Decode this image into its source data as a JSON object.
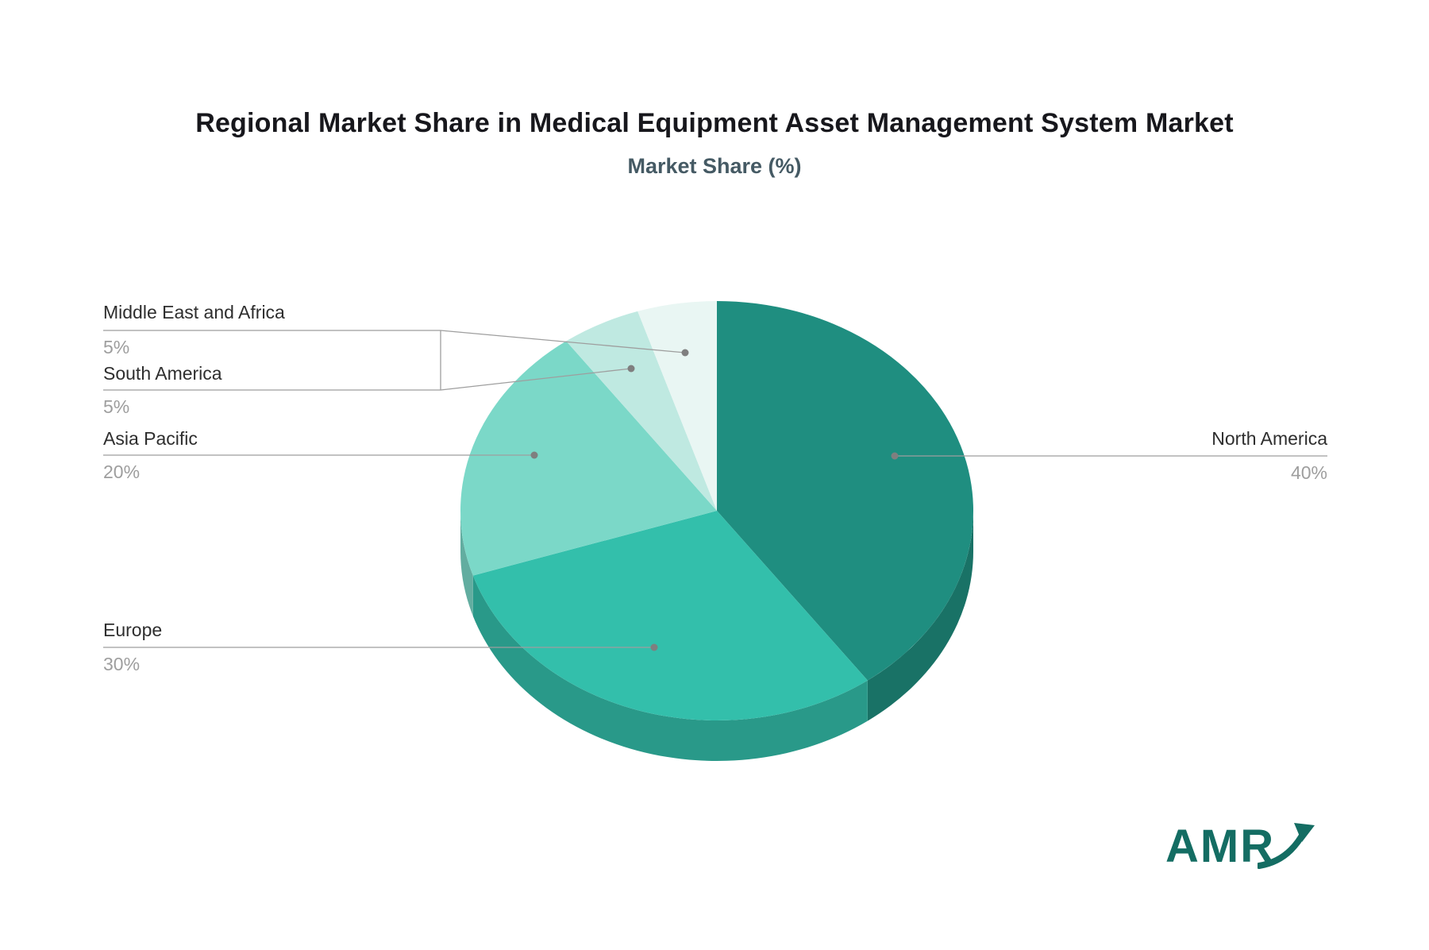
{
  "title": "Regional Market Share in Medical Equipment Asset Management System Market",
  "subtitle": "Market Share (%)",
  "logo": {
    "text": "AMR"
  },
  "colors": {
    "background": "#ffffff",
    "title": "#17171c",
    "subtitle": "#455a64",
    "label": "#2e2e2e",
    "value": "#9e9e9e",
    "leader_line": "#9e9e9e",
    "leader_dot": "#7f7f7f",
    "logo": "#146d63"
  },
  "chart_data": {
    "type": "pie",
    "style": "3d",
    "title": "Regional Market Share in Medical Equipment Asset Management System Market",
    "subtitle": "Market Share (%)",
    "unit": "%",
    "categories": [
      "North America",
      "Europe",
      "Asia Pacific",
      "South America",
      "Middle East and Africa"
    ],
    "values": [
      40,
      30,
      20,
      5,
      5
    ],
    "labels": [
      "40%",
      "30%",
      "20%",
      "5%",
      "5%"
    ],
    "slice_colors": [
      "#1f8e80",
      "#33bfab",
      "#7bd8c8",
      "#bfe9e1",
      "#e9f6f3"
    ],
    "start_angle_deg": 0,
    "direction": "clockwise",
    "legend": "none",
    "label_style": "leader-lines"
  }
}
